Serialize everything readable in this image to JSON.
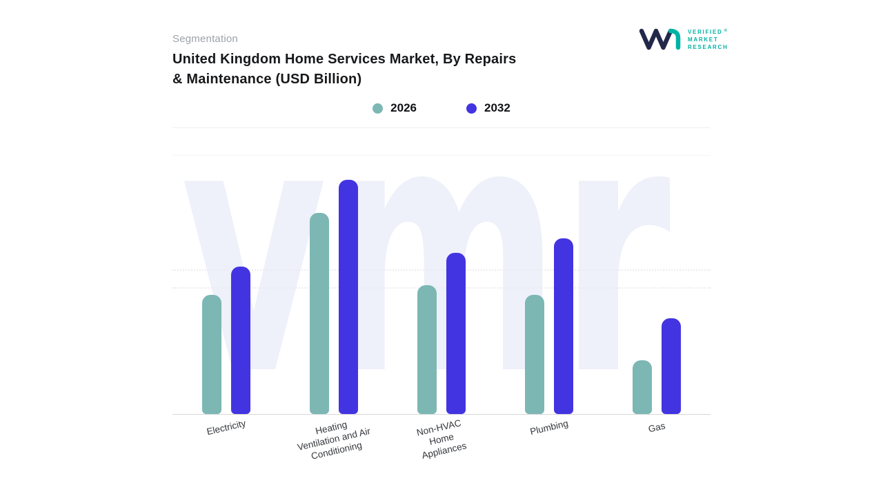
{
  "header": {
    "eyebrow": "Segmentation",
    "title_line1": "United Kingdom Home Services Market, By Repairs",
    "title_line2": "& Maintenance (USD Billion)"
  },
  "logo": {
    "brand_lines": [
      "VERIFIED",
      "MARKET",
      "RESEARCH"
    ],
    "registered_mark": "®",
    "teal": "#00b3a4",
    "navy": "#23284a"
  },
  "watermark": {
    "text": "vmr",
    "color": "#eef0fa"
  },
  "chart_data": {
    "type": "bar",
    "title": "United Kingdom Home Services Market, By Repairs & Maintenance (USD Billion)",
    "xlabel": "",
    "ylabel": "",
    "units": "relative index (no y-axis tick labels shown in image)",
    "legend_position": "top-center",
    "grid": "faint dotted horizontal lines, bottom axis line only",
    "categories": [
      "Electricity",
      "Heating Ventilation and Air Conditioning",
      "Non-HVAC Home Appliances",
      "Plumbing",
      "Gas"
    ],
    "category_label_lines": [
      [
        "Electricity"
      ],
      [
        "Heating",
        "Ventilation and Air",
        "Conditioning"
      ],
      [
        "Non-HVAC",
        "Home",
        "Appliances"
      ],
      [
        "Plumbing"
      ],
      [
        "Gas"
      ]
    ],
    "series": [
      {
        "name": "2026",
        "color": "#7cb7b4",
        "values": [
          51,
          86,
          55,
          51,
          23
        ]
      },
      {
        "name": "2032",
        "color": "#4334e1",
        "values": [
          63,
          100,
          69,
          75,
          41
        ]
      }
    ],
    "ylim": [
      0,
      111
    ]
  }
}
